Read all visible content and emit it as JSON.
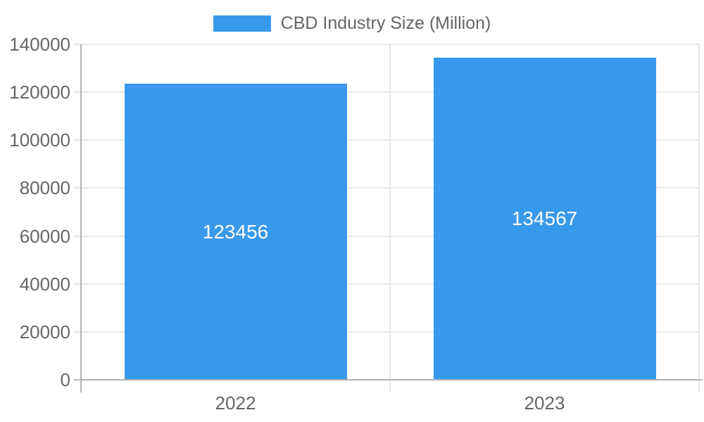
{
  "chart_data": {
    "type": "bar",
    "title": "CBD Industry Size (Million)",
    "categories": [
      "2022",
      "2023"
    ],
    "series": [
      {
        "name": "CBD Industry Size (Million)",
        "values": [
          123456,
          134567
        ]
      }
    ],
    "data_labels": [
      "123456",
      "134567"
    ],
    "xlabel": "",
    "ylabel": "",
    "ylim": [
      0,
      140000
    ],
    "y_ticks": [
      0,
      20000,
      40000,
      60000,
      80000,
      100000,
      120000,
      140000
    ],
    "grid": true,
    "legend_position": "top"
  },
  "colors": {
    "bar": "#3899EC",
    "grid": "#E6E6E6",
    "axis": "#B3B3B3",
    "text": "#666666",
    "bar_label": "#FFFFFF",
    "background": "#FFFFFF"
  }
}
